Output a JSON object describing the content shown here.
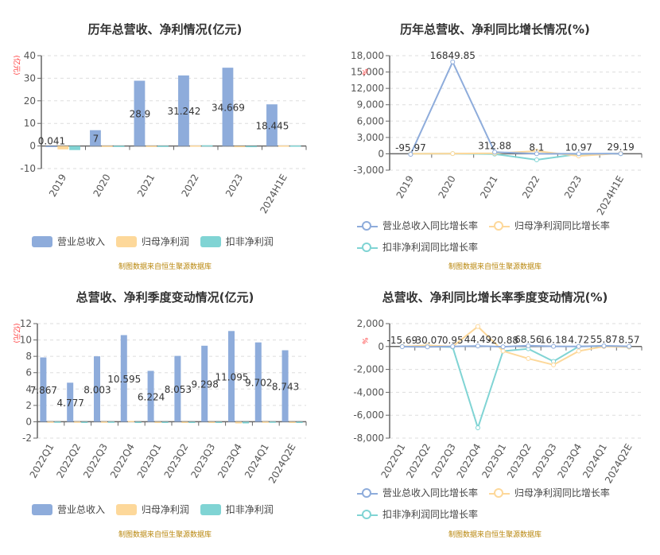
{
  "source_note": "制图数据来自恒生聚源数据库",
  "colors": {
    "revenue": "#8eacdb",
    "net_profit": "#fdd89a",
    "deducted": "#80d4d4",
    "axis": "#666666",
    "unit_label": "#ff3333",
    "source": "#b8860b"
  },
  "charts": [
    {
      "title": "历年总营收、净利情况(亿元)",
      "unit": "(亿元)",
      "legend": [
        "营业总收入",
        "归母净利润",
        "扣非净利润"
      ]
    },
    {
      "title": "历年总营收、净利同比增长情况(%)",
      "unit": "%",
      "legend": [
        "营业总收入同比增长率",
        "归母净利润同比增长率",
        "扣非净利润同比增长率"
      ]
    },
    {
      "title": "总营收、净利季度变动情况(亿元)",
      "unit": "(亿元)",
      "legend": [
        "营业总收入",
        "归母净利润",
        "扣非净利润"
      ]
    },
    {
      "title": "总营收、净利同比增长率季度变动情况(%)",
      "unit": "%",
      "legend": [
        "营业总收入同比增长率",
        "归母净利润同比增长率",
        "扣非净利润同比增长率"
      ]
    }
  ],
  "chart_data": [
    {
      "type": "bar",
      "title": "历年总营收、净利情况(亿元)",
      "ylabel": "(亿元)",
      "categories": [
        "2019",
        "2020",
        "2021",
        "2022",
        "2023",
        "2024H1E"
      ],
      "ylim": [
        -10,
        40
      ],
      "yticks": [
        -10,
        0,
        10,
        20,
        30,
        40
      ],
      "series": [
        {
          "name": "营业总收入",
          "values": [
            0.041,
            7,
            28.9,
            31.242,
            34.669,
            18.445
          ]
        },
        {
          "name": "归母净利润",
          "values": [
            -1.5,
            0.1,
            0.1,
            0.2,
            -0.4,
            0.2
          ]
        },
        {
          "name": "扣非净利润",
          "values": [
            -1.8,
            0.1,
            0.1,
            0.3,
            -0.5,
            0.2
          ]
        }
      ],
      "data_labels": [
        "0.041",
        "7",
        "28.9",
        "31.242",
        "34.669",
        "18.445"
      ],
      "grid": true,
      "legend_position": "bottom"
    },
    {
      "type": "line",
      "title": "历年总营收、净利同比增长情况(%)",
      "ylabel": "%",
      "categories": [
        "2019",
        "2020",
        "2021",
        "2022",
        "2023",
        "2024H1E"
      ],
      "ylim": [
        -3000,
        18000
      ],
      "yticks": [
        -3000,
        0,
        3000,
        6000,
        9000,
        12000,
        15000,
        18000
      ],
      "series": [
        {
          "name": "营业总收入同比增长率",
          "values": [
            -95.97,
            16849.85,
            312.88,
            8.1,
            10.97,
            29.19
          ]
        },
        {
          "name": "归母净利润同比增长率",
          "values": [
            0,
            50,
            100,
            500,
            -400,
            100
          ]
        },
        {
          "name": "扣非净利润同比增长率",
          "values": [
            0,
            50,
            -50,
            -1100,
            -50,
            30
          ]
        }
      ],
      "data_labels": [
        "-95.97",
        "16849.85",
        "312.88",
        "8.1",
        "10.97",
        "29.19"
      ],
      "grid": true,
      "legend_position": "bottom"
    },
    {
      "type": "bar",
      "title": "总营收、净利季度变动情况(亿元)",
      "ylabel": "(亿元)",
      "categories": [
        "2022Q1",
        "2022Q2",
        "2022Q3",
        "2022Q4",
        "2023Q1",
        "2023Q2",
        "2023Q3",
        "2023Q4",
        "2024Q1",
        "2024Q2E"
      ],
      "ylim": [
        -2,
        12
      ],
      "yticks": [
        -2,
        0,
        2,
        4,
        6,
        8,
        10,
        12
      ],
      "series": [
        {
          "name": "营业总收入",
          "values": [
            7.867,
            4.777,
            8.003,
            10.595,
            6.224,
            8.053,
            9.298,
            11.095,
            9.702,
            8.743
          ]
        },
        {
          "name": "归母净利润",
          "values": [
            0.02,
            0.02,
            0.02,
            0.1,
            -0.05,
            -0.1,
            -0.05,
            -0.2,
            0.02,
            -0.1
          ]
        },
        {
          "name": "扣非净利润",
          "values": [
            0.02,
            -0.05,
            0.02,
            -0.15,
            -0.1,
            -0.1,
            -0.05,
            -0.2,
            0.02,
            -0.1
          ]
        }
      ],
      "data_labels": [
        "7.867",
        "4.777",
        "8.003",
        "10.595",
        "6.224",
        "8.053",
        "9.298",
        "11.095",
        "9.702",
        "8.743"
      ],
      "grid": true,
      "legend_position": "bottom"
    },
    {
      "type": "line",
      "title": "总营收、净利同比增长率季度变动情况(%)",
      "ylabel": "%",
      "categories": [
        "2022Q1",
        "2022Q2",
        "2022Q3",
        "2022Q4",
        "2023Q1",
        "2023Q2",
        "2023Q3",
        "2023Q4",
        "2024Q1",
        "2024Q2E"
      ],
      "ylim": [
        -8000,
        2000
      ],
      "yticks": [
        -8000,
        -6000,
        -4000,
        -2000,
        0,
        2000
      ],
      "series": [
        {
          "name": "营业总收入同比增长率",
          "values": [
            -15.69,
            -30.07,
            0.95,
            44.49,
            -20.88,
            68.56,
            16.18,
            4.72,
            55.87,
            8.57
          ]
        },
        {
          "name": "归母净利润同比增长率",
          "values": [
            0,
            100,
            0,
            1750,
            -400,
            -1050,
            -1600,
            -400,
            0,
            -50
          ]
        },
        {
          "name": "扣非净利润同比增长率",
          "values": [
            0,
            0,
            -50,
            -7100,
            -400,
            -200,
            -1300,
            0,
            50,
            -50
          ]
        }
      ],
      "data_labels": [
        "-15.69",
        "-30.07",
        "0.95",
        "44.49",
        "-20.88",
        "68.56",
        "16.18",
        "4.72",
        "55.87",
        "8.57"
      ],
      "grid": true,
      "legend_position": "bottom"
    }
  ]
}
